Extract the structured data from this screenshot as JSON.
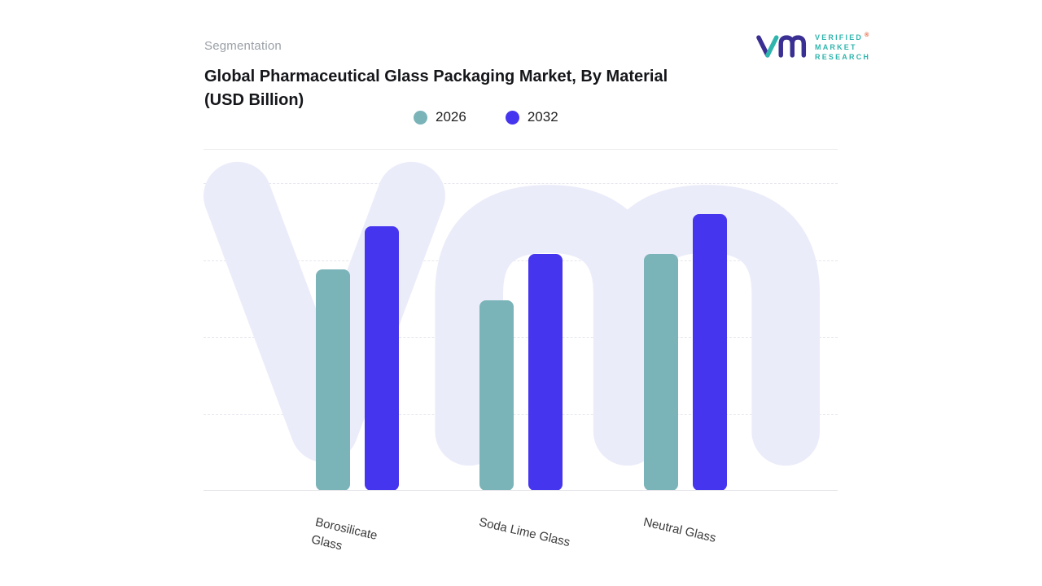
{
  "page": {
    "eyebrow": "Segmentation"
  },
  "chart_data": {
    "type": "bar",
    "title": "Global Pharmaceutical Glass Packaging Market, By Material (USD Billion)",
    "categories": [
      "Borosilicate Glass",
      "Soda Lime Glass",
      "Neutral Glass"
    ],
    "series": [
      {
        "name": "2026",
        "color": "#7ab4b8",
        "values": [
          72,
          62,
          77
        ]
      },
      {
        "name": "2032",
        "color": "#4635ef",
        "values": [
          86,
          77,
          90
        ]
      }
    ],
    "ylim": [
      0,
      100
    ],
    "unit": "USD Billion",
    "grid": "horizontal-dashed",
    "legend_position": "top-center",
    "group_centers_pct": [
      24.2,
      50.1,
      76.0
    ]
  },
  "logo": {
    "brand_lines": [
      "VERIFIED",
      "MARKET",
      "RESEARCH"
    ],
    "registered_mark": "®",
    "mark_purple": "#3a2f92",
    "mark_teal": "#2fb5ad"
  },
  "colors": {
    "watermark": "#ebecfa",
    "grid": "#e6e7ee",
    "divider": "#ececec",
    "title_text": "#15161a",
    "eyebrow_text": "#9aa0a6"
  }
}
